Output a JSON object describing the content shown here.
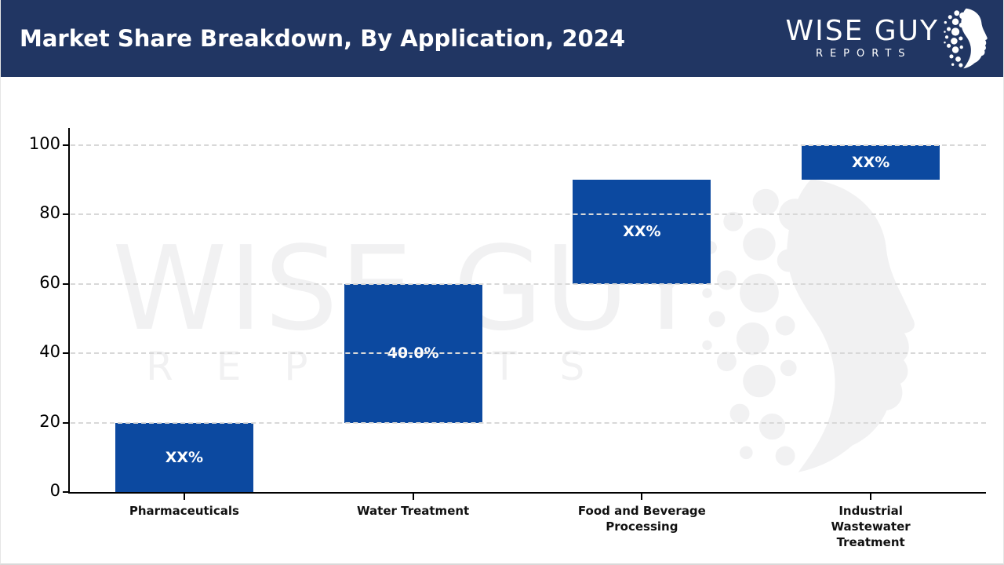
{
  "header": {
    "title": "Market Share Breakdown, By Application, 2024",
    "logo": {
      "name": "WISE GUY",
      "subname": "REPORTS"
    }
  },
  "watermark": {
    "line1": "WISE GUY",
    "line2": "REPORTS"
  },
  "chart_data": {
    "type": "bar",
    "subtype": "waterfall",
    "title": "Market Share Breakdown, By Application, 2024",
    "categories": [
      "Pharmaceuticals",
      "Water Treatment",
      "Food and Beverage Processing",
      "Industrial Wastewater Treatment"
    ],
    "segments": [
      {
        "category": "Pharmaceuticals",
        "start": 0,
        "end": 20,
        "label": "XX%"
      },
      {
        "category": "Water Treatment",
        "start": 20,
        "end": 60,
        "label": "40.0%"
      },
      {
        "category": "Food and Beverage Processing",
        "start": 60,
        "end": 90,
        "label": "XX%"
      },
      {
        "category": "Industrial Wastewater Treatment",
        "start": 90,
        "end": 100,
        "label": "XX%"
      }
    ],
    "ylim": [
      0,
      100
    ],
    "yticks": [
      0,
      20,
      40,
      60,
      80,
      100
    ],
    "grid": "horizontal-dashed",
    "legend": "none",
    "bar_color": "#0C49A0",
    "bar_label_color": "#FFFFFF",
    "axis_color": "#000000",
    "gridline_color": "#D8D8D8",
    "header_bg": "#213663",
    "header_text_color": "#FFFFFF",
    "watermark_color": "#F1F1F2"
  }
}
